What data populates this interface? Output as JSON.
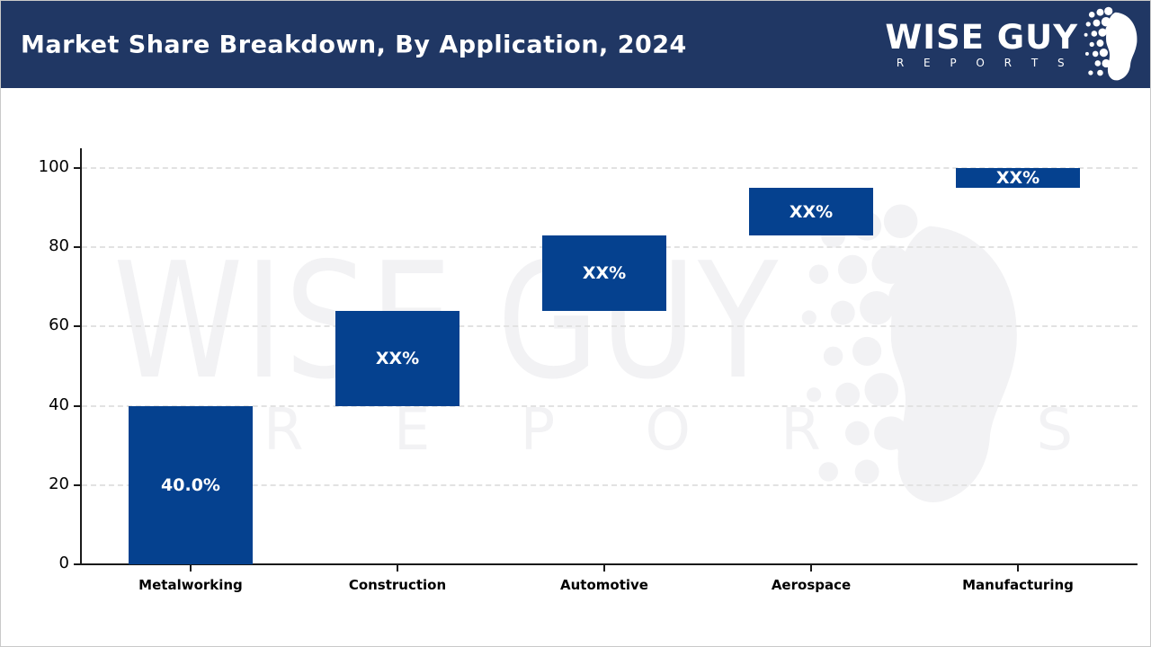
{
  "header": {
    "title": "Market Share Breakdown, By Application, 2024",
    "bg_color": "#203764",
    "logo": {
      "wordmark": "WISE GUY",
      "subtext": "R E P O R T S"
    }
  },
  "watermark": {
    "wordmark": "WISE GUY",
    "subtext": "R E P O R T S"
  },
  "chart_data": {
    "type": "bar",
    "subtype": "waterfall",
    "title": "Market Share Breakdown, By Application, 2024",
    "categories": [
      "Metalworking",
      "Construction",
      "Automotive",
      "Aerospace",
      "Manufacturing"
    ],
    "segments": [
      {
        "category": "Metalworking",
        "start": 0,
        "end": 40,
        "label": "40.0%"
      },
      {
        "category": "Construction",
        "start": 40,
        "end": 64,
        "label": "XX%"
      },
      {
        "category": "Automotive",
        "start": 64,
        "end": 83,
        "label": "XX%"
      },
      {
        "category": "Aerospace",
        "start": 83,
        "end": 95,
        "label": "XX%"
      },
      {
        "category": "Manufacturing",
        "start": 95,
        "end": 100,
        "label": "XX%"
      }
    ],
    "y_ticks": [
      0,
      20,
      40,
      60,
      80,
      100
    ],
    "ylim": [
      0,
      105
    ],
    "xlabel": "",
    "ylabel": "",
    "grid": "horizontal-dashed",
    "legend": "none",
    "bar_color": "#05418f",
    "bar_label_color": "#ffffff",
    "axis_color": "#1a1a1a",
    "gridline_color": "#e2e2e2"
  }
}
